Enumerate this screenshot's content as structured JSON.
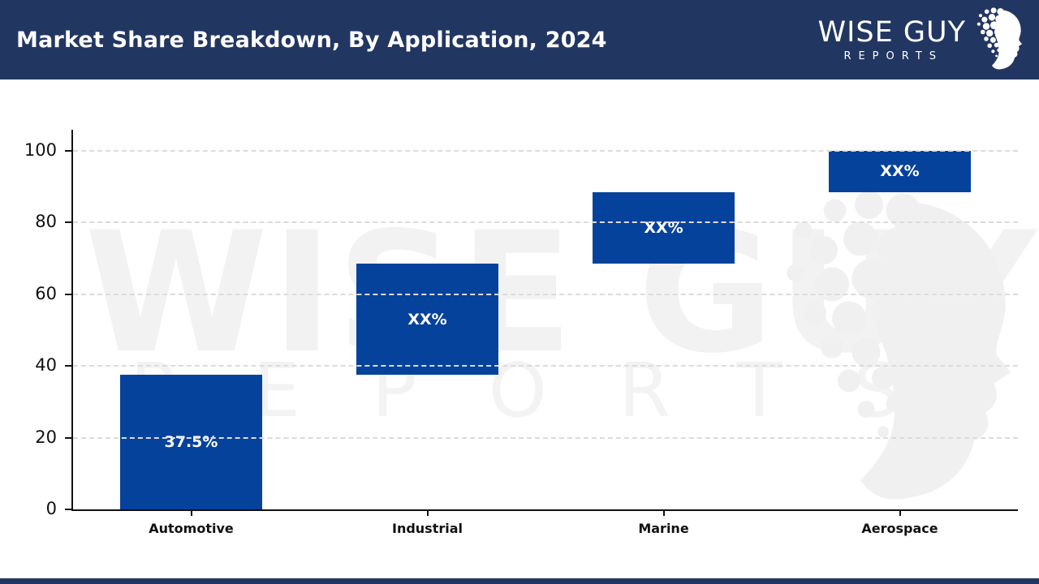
{
  "header": {
    "title": "Market Share Breakdown, By Application, 2024",
    "background_color": "#223662",
    "brand": {
      "name_top": "WISE GUY",
      "name_bottom": "REPORTS"
    }
  },
  "watermark": {
    "text_top": "WISE GUY",
    "text_bottom": "REPORTS"
  },
  "footer": {
    "background_color": "#223662"
  },
  "chart_data": {
    "type": "bar",
    "subtype": "floating-segment-waterfall",
    "title": "Market Share Breakdown, By Application, 2024",
    "categories": [
      "Automotive",
      "Industrial",
      "Marine",
      "Aerospace"
    ],
    "segments": [
      {
        "category": "Automotive",
        "start": 0,
        "end": 37.5,
        "label": "37.5%"
      },
      {
        "category": "Industrial",
        "start": 37.5,
        "end": 68.5,
        "label": "XX%"
      },
      {
        "category": "Marine",
        "start": 68.5,
        "end": 88.5,
        "label": "XX%"
      },
      {
        "category": "Aerospace",
        "start": 88.5,
        "end": 100,
        "label": "XX%"
      }
    ],
    "values": [
      37.5,
      31,
      20,
      11.5
    ],
    "bar_labels": [
      "37.5%",
      "XX%",
      "XX%",
      "XX%"
    ],
    "xlabel": "",
    "ylabel": "",
    "ylim": [
      0,
      105.9
    ],
    "yticks": [
      0,
      20,
      40,
      60,
      80,
      100
    ],
    "grid": true,
    "grid_style": "dashed",
    "legend": false,
    "bar_color": "#05429b",
    "grid_color": "#dcdcdc",
    "axis_color": "#111111",
    "bar_label_color": "#ffffff"
  }
}
